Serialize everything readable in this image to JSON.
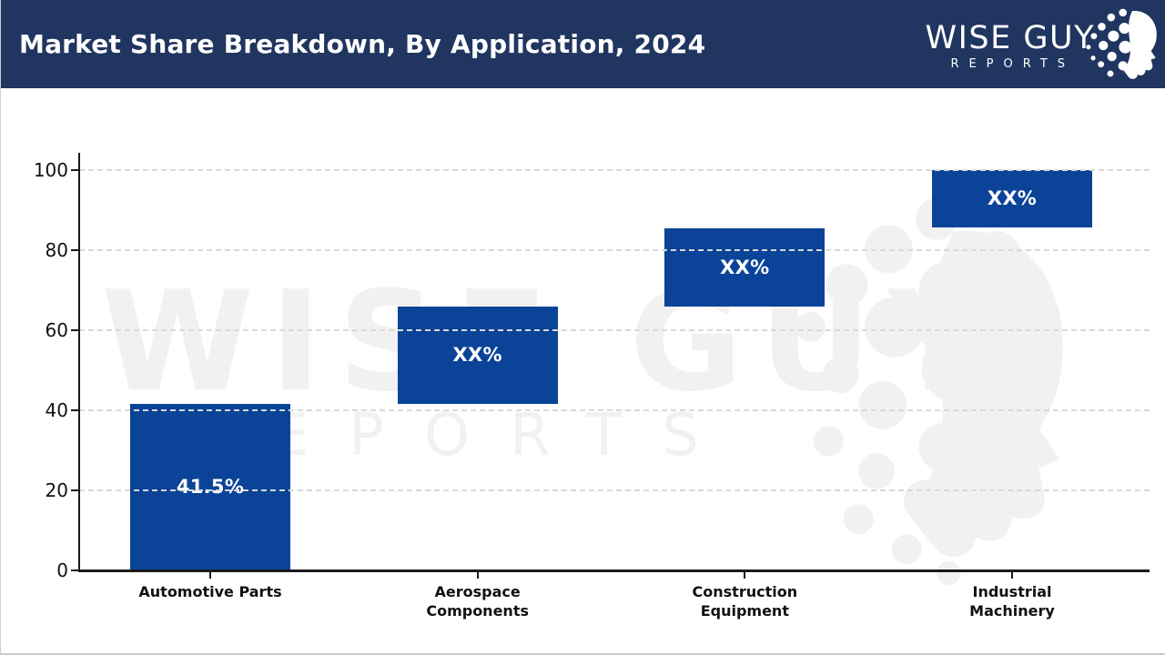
{
  "header": {
    "title": "Market Share Breakdown, By Application, 2024",
    "logo": {
      "line1": "WISE GUY",
      "line2": "REPORTS"
    }
  },
  "watermark": {
    "line1": "WISE GUY",
    "line2": "REPORTS"
  },
  "chart_data": {
    "type": "bar",
    "subtype": "floating-waterfall",
    "title": "Market Share Breakdown, By Application, 2024",
    "categories": [
      "Automotive Parts",
      "Aerospace Components",
      "Construction Equipment",
      "Industrial Machinery"
    ],
    "category_lines": [
      [
        "Automotive Parts"
      ],
      [
        "Aerospace",
        "Components"
      ],
      [
        "Construction",
        "Equipment"
      ],
      [
        "Industrial",
        "Machinery"
      ]
    ],
    "segments": [
      {
        "category": "Automotive Parts",
        "start": 0,
        "end": 41.5,
        "value": 41.5,
        "label": "41.5%"
      },
      {
        "category": "Aerospace Components",
        "start": 41.5,
        "end": 65.9,
        "value": 24.4,
        "label": "XX%"
      },
      {
        "category": "Construction Equipment",
        "start": 65.8,
        "end": 85.3,
        "value": 19.5,
        "label": "XX%"
      },
      {
        "category": "Industrial Machinery",
        "start": 85.6,
        "end": 100,
        "value": 14.4,
        "label": "XX%"
      }
    ],
    "xlabel": "",
    "ylabel": "",
    "ylim": [
      0,
      100
    ],
    "yticks": [
      0,
      20,
      40,
      60,
      80,
      100
    ],
    "grid": "horizontal-dashed-over-bars",
    "legend": null,
    "bar_color": "#0a4398",
    "bar_label_color": "#ffffff"
  },
  "colors": {
    "header_bg": "#203560",
    "bar": "#0a4398",
    "axis": "#1a1a1a",
    "gridline": "#d9d9d9",
    "watermark": "#f1f1f1",
    "page_border": "#cfcfcf"
  }
}
